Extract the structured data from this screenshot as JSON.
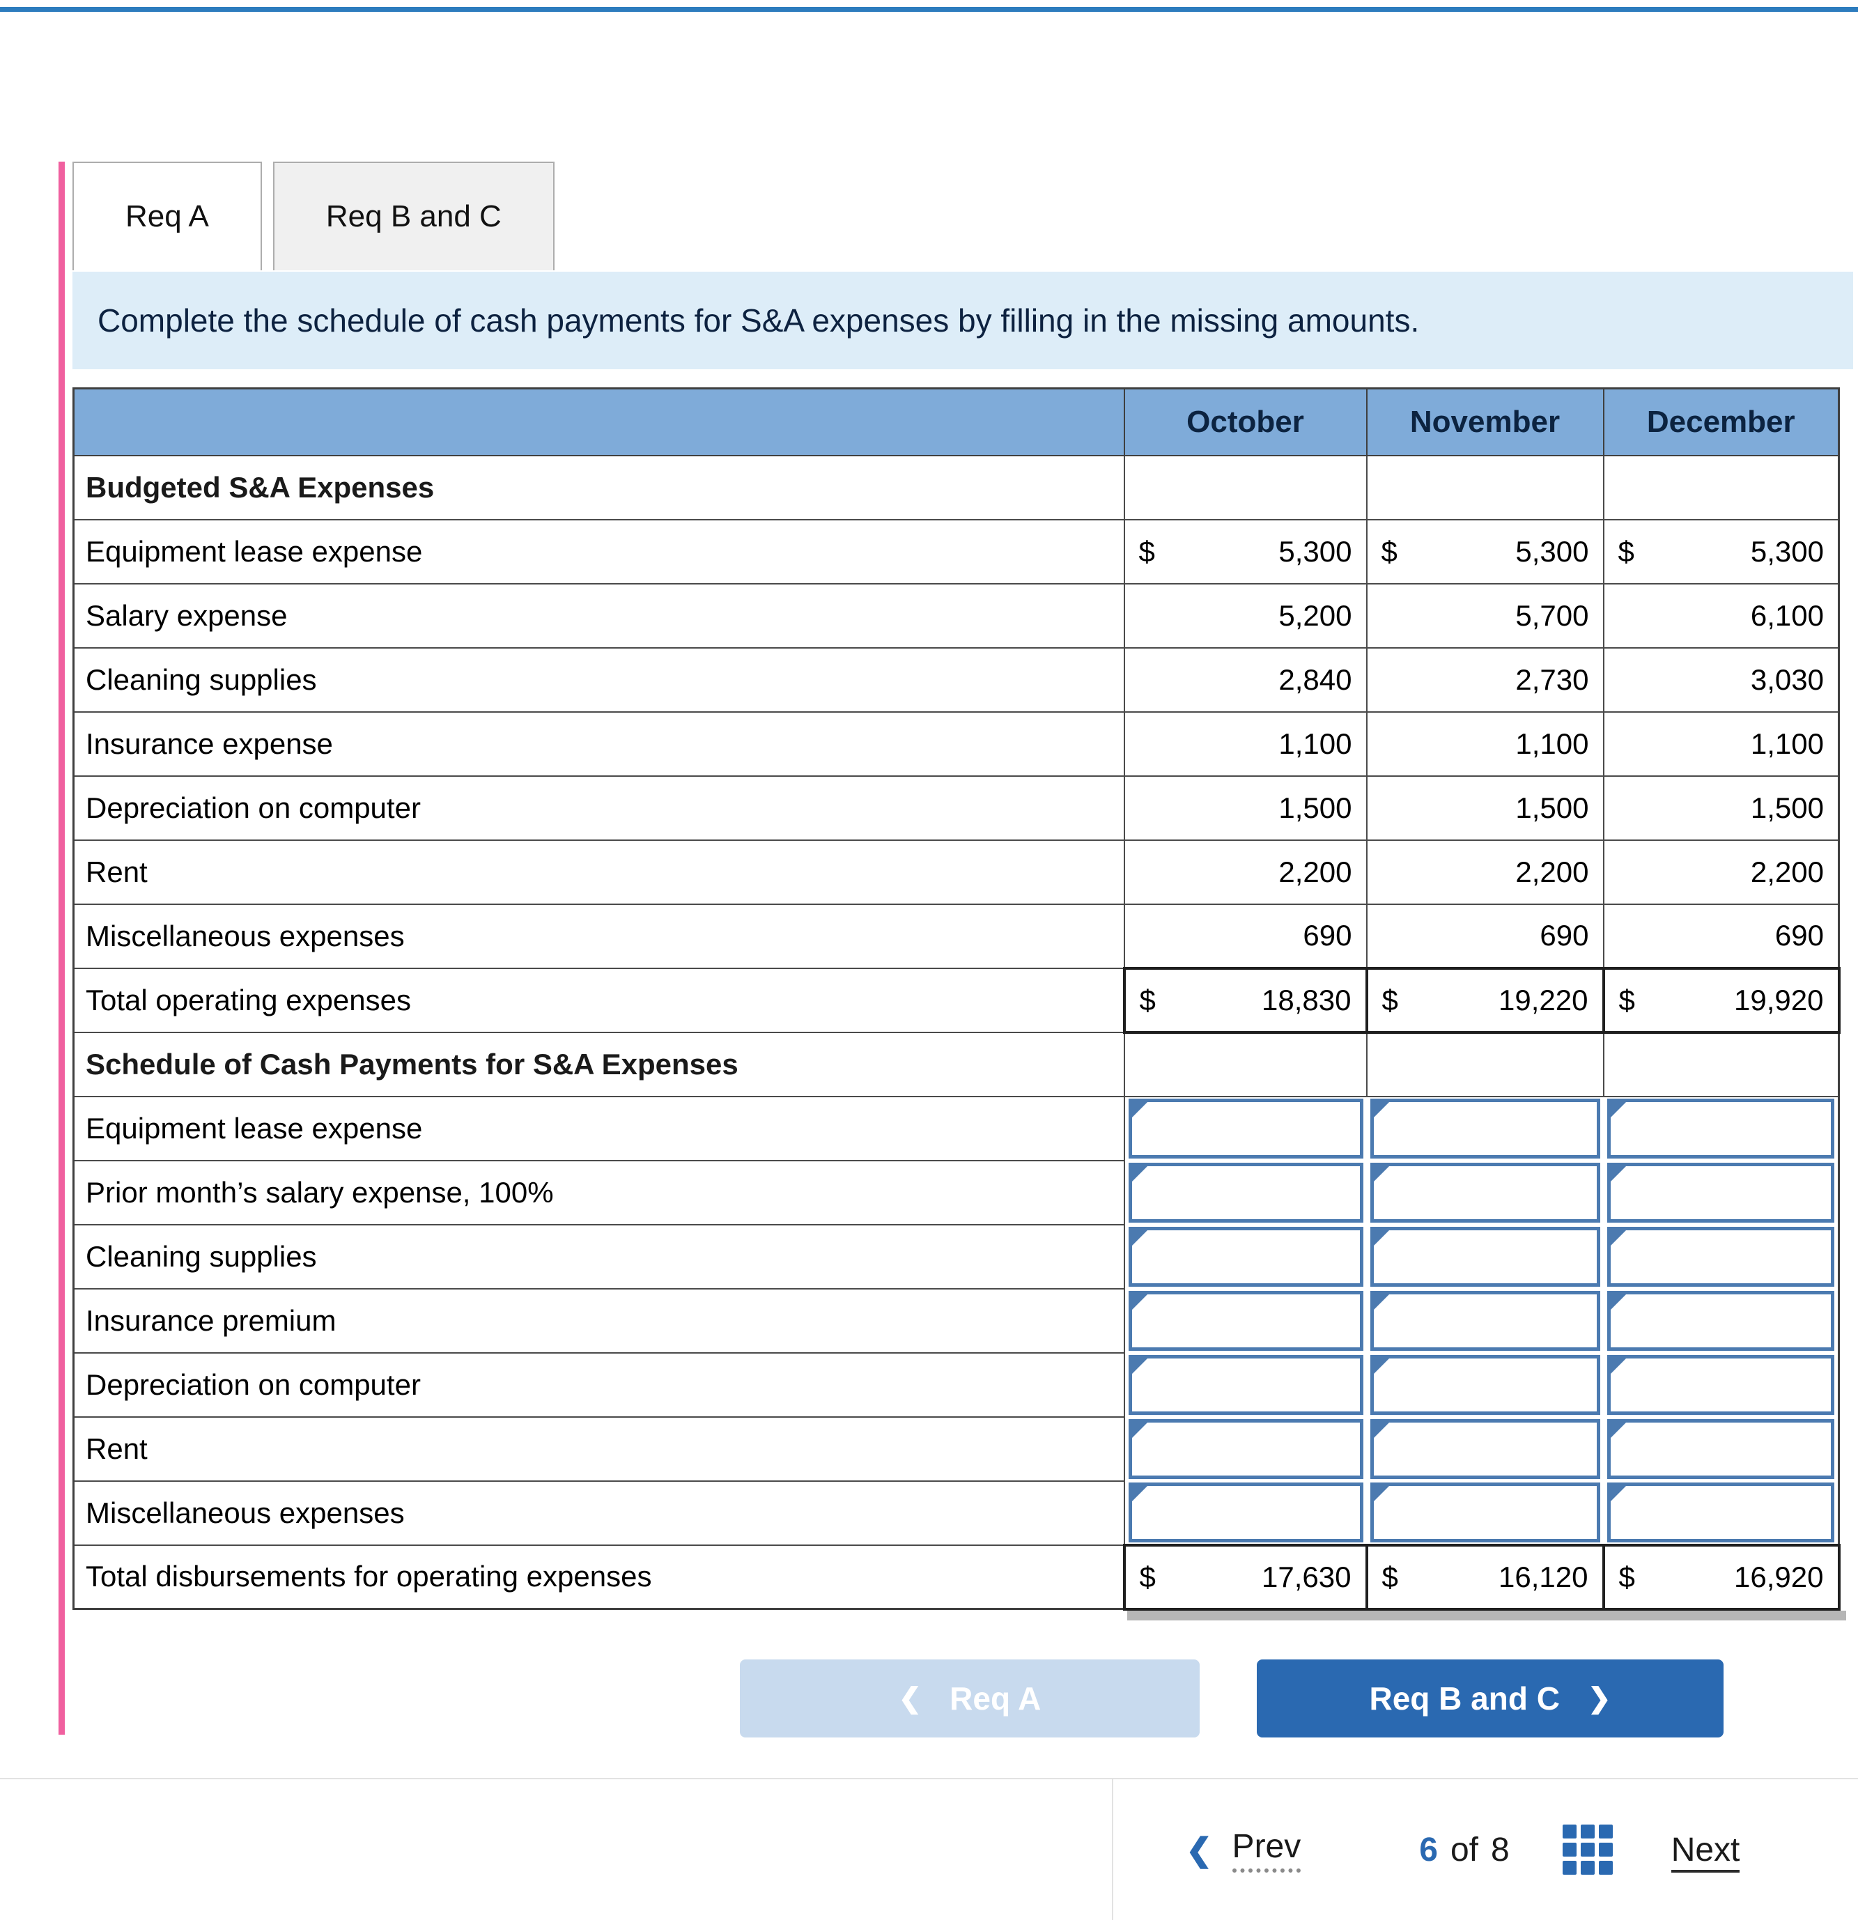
{
  "tabs": [
    {
      "label": "Req A",
      "active": true
    },
    {
      "label": "Req B and C",
      "active": false
    }
  ],
  "instruction": "Complete the schedule of cash payments for S&A expenses by filling in the missing amounts.",
  "table": {
    "currency_symbol": "$",
    "columns": [
      "October",
      "November",
      "December"
    ],
    "rows": [
      {
        "type": "section",
        "label": "Budgeted S&A Expenses"
      },
      {
        "type": "data",
        "label": "Equipment lease expense",
        "dollar": true,
        "values": [
          "5,300",
          "5,300",
          "5,300"
        ]
      },
      {
        "type": "data",
        "label": "Salary expense",
        "dollar": false,
        "values": [
          "5,200",
          "5,700",
          "6,100"
        ]
      },
      {
        "type": "data",
        "label": "Cleaning supplies",
        "dollar": false,
        "values": [
          "2,840",
          "2,730",
          "3,030"
        ]
      },
      {
        "type": "data",
        "label": "Insurance expense",
        "dollar": false,
        "values": [
          "1,100",
          "1,100",
          "1,100"
        ]
      },
      {
        "type": "data",
        "label": "Depreciation on computer",
        "dollar": false,
        "values": [
          "1,500",
          "1,500",
          "1,500"
        ]
      },
      {
        "type": "data",
        "label": "Rent",
        "dollar": false,
        "values": [
          "2,200",
          "2,200",
          "2,200"
        ]
      },
      {
        "type": "data",
        "label": "Miscellaneous expenses",
        "dollar": false,
        "values": [
          "690",
          "690",
          "690"
        ]
      },
      {
        "type": "total",
        "label": "Total operating expenses",
        "dollar": true,
        "values": [
          "18,830",
          "19,220",
          "19,920"
        ]
      },
      {
        "type": "section",
        "label": "Schedule of Cash Payments for S&A Expenses"
      },
      {
        "type": "input",
        "label": "Equipment lease expense"
      },
      {
        "type": "input",
        "label": "Prior month’s salary expense, 100%"
      },
      {
        "type": "input",
        "label": "Cleaning supplies"
      },
      {
        "type": "input",
        "label": "Insurance premium"
      },
      {
        "type": "input",
        "label": "Depreciation on computer"
      },
      {
        "type": "input",
        "label": "Rent"
      },
      {
        "type": "input",
        "label": "Miscellaneous expenses"
      },
      {
        "type": "total",
        "label": "Total disbursements for operating expenses",
        "dollar": true,
        "values": [
          "17,630",
          "16,120",
          "16,920"
        ]
      }
    ]
  },
  "nav_buttons": {
    "prev": {
      "label": "Req A",
      "chevron": "❮"
    },
    "next": {
      "label": "Req B and C",
      "chevron": "❯"
    }
  },
  "footer": {
    "prev_chevron": "❮",
    "prev_label": "Prev",
    "page_current": "6",
    "page_separator": "of",
    "page_total": "8",
    "next_label": "Next"
  },
  "colors": {
    "top_bar_blue": "#2D7CBE",
    "header_blue": "#7FABD9",
    "instruction_bg": "#DDEDF8",
    "pink_accent": "#F0609F",
    "input_border_blue": "#4B7AB0",
    "accent_blue": "#2A69B1",
    "light_button_blue": "#C8DAEE"
  }
}
